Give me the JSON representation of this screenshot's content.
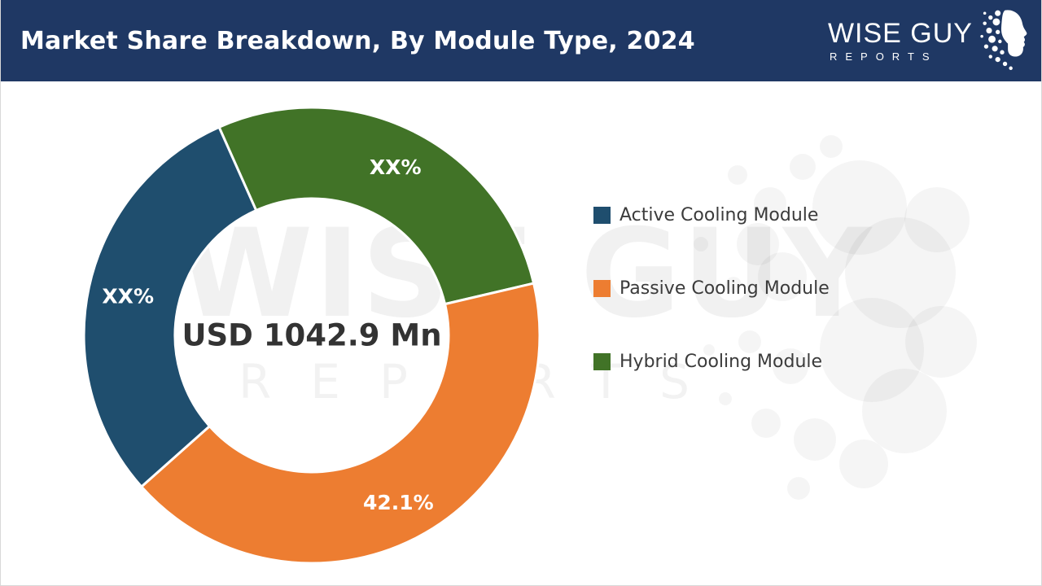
{
  "header": {
    "title": "Market Share Breakdown, By Module Type, 2024",
    "logo": {
      "line1": "WISE GUY",
      "line2": "REPORTS"
    }
  },
  "watermark": {
    "line1": "WISE GUY",
    "line2": "REPORTS"
  },
  "chart_data": {
    "type": "pie",
    "subtype": "donut",
    "title": "Market Share Breakdown, By Module Type, 2024",
    "center_label": "USD 1042.9 Mn",
    "legend_position": "right",
    "start_angle_deg": -24,
    "direction": "clockwise",
    "slices": [
      {
        "label": "Hybrid Cooling Module",
        "display_value": "XX%",
        "value_pct": 28.0,
        "value_masked": true,
        "color": "#417327"
      },
      {
        "label": "Passive Cooling Module",
        "display_value": "42.1%",
        "value_pct": 42.1,
        "value_masked": false,
        "color": "#ed7d31"
      },
      {
        "label": "Active Cooling Module",
        "display_value": "XX%",
        "value_pct": 29.9,
        "value_masked": true,
        "color": "#1f4e6e"
      }
    ],
    "legend": [
      {
        "label": "Active Cooling Module",
        "color": "#1f4e6e"
      },
      {
        "label": "Passive Cooling Module",
        "color": "#ed7d31"
      },
      {
        "label": "Hybrid Cooling Module",
        "color": "#417327"
      }
    ]
  },
  "colors": {
    "header_bg": "#1f3864",
    "canvas_border": "#d8d8d8",
    "slice_separator": "#ffffff",
    "center_text": "#333333",
    "legend_text": "#3b3b3b",
    "slice_label_text": "#ffffff"
  }
}
